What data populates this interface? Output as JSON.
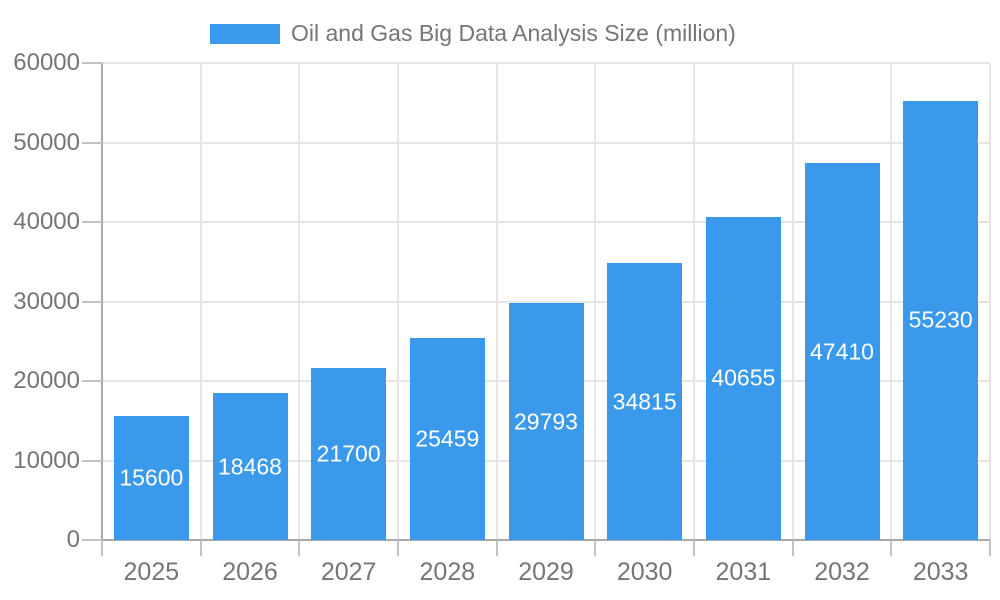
{
  "chart_data": {
    "type": "bar",
    "title": "Oil and Gas Big Data Analysis Size (million)",
    "categories": [
      "2025",
      "2026",
      "2027",
      "2028",
      "2029",
      "2030",
      "2031",
      "2032",
      "2033"
    ],
    "values": [
      15600,
      18468,
      21700,
      25459,
      29793,
      34815,
      40655,
      47410,
      55230
    ],
    "xlabel": "",
    "ylabel": "",
    "ylim": [
      0,
      60000
    ],
    "ytick_interval": 10000,
    "ytick_labels": [
      "0",
      "10000",
      "20000",
      "30000",
      "40000",
      "50000",
      "60000"
    ],
    "grid": true,
    "legend_position": "top",
    "bar_value_labels": "inside-centered",
    "colors": {
      "bar": "#3B99EC",
      "bar_label": "#FFFFFF",
      "axis_text": "#757575",
      "legend_text": "#757575",
      "gridline": "#E5E5E5",
      "tick": "#C2C2C2",
      "axis_line": "#A8A8A8",
      "background": "#FFFFFF"
    }
  }
}
